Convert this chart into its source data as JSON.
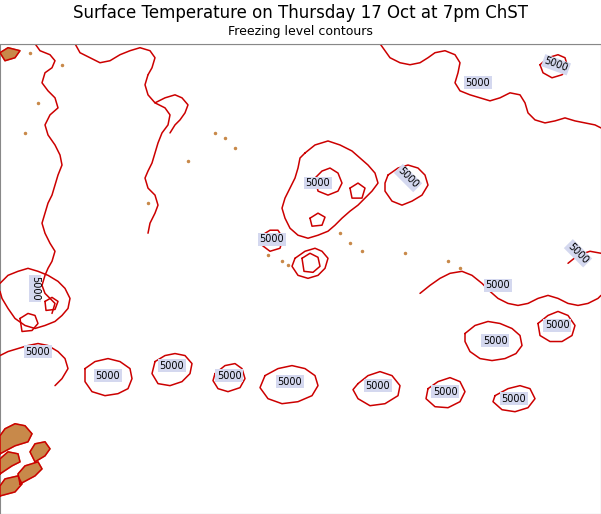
{
  "title": "Surface Temperature on Thursday 17 Oct at 7pm ChST",
  "subtitle": "Freezing level contours",
  "title_fontsize": 12,
  "subtitle_fontsize": 9,
  "map_bg": "#d4d8ef",
  "land_color": "#c8894a",
  "contour_color": "#cc0000",
  "contour_label": "5000",
  "contour_label_fontsize": 7,
  "grid_color": "#ffffff",
  "grid_alpha": 0.9,
  "grid_linewidth": 0.6,
  "fig_width": 6.01,
  "fig_height": 5.14,
  "dpi": 100,
  "title_bg": "#ffffff",
  "border_color": "#888888"
}
